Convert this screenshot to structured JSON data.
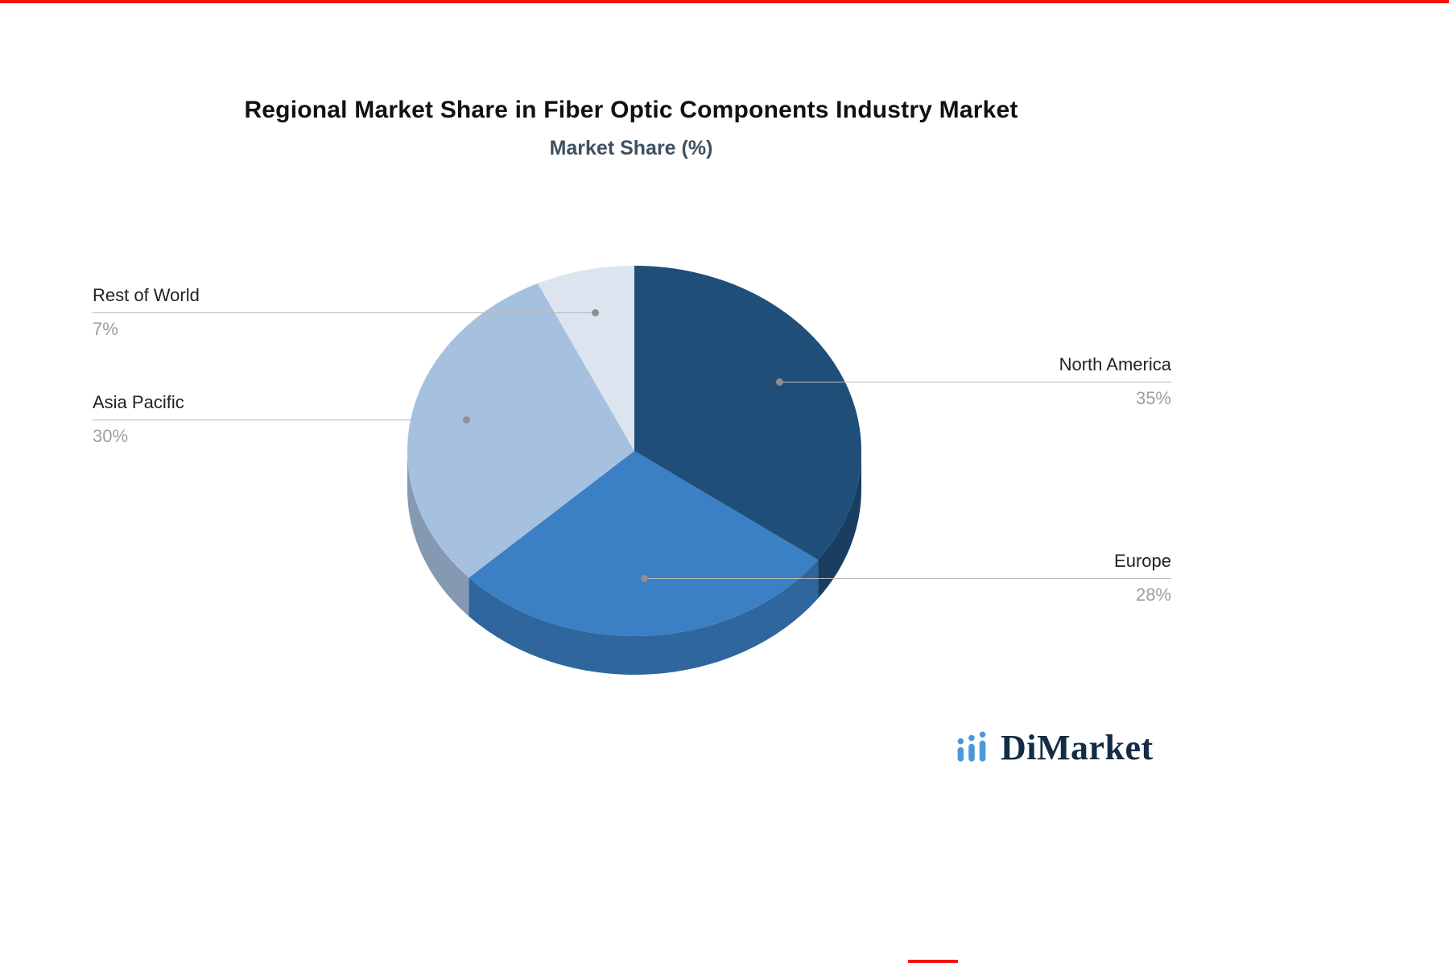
{
  "page": {
    "title": "Regional Market Share in Fiber Optic Components Industry Market",
    "subtitle": "Market Share (%)"
  },
  "colors": {
    "background": "#FFFFFF",
    "accent_red": "#F5120D",
    "title_text": "#111111",
    "subtitle_text": "#3E5060",
    "label_text": "#222222",
    "pct_text": "#9E9E9E",
    "leader_line": "#B9B9B9",
    "leader_dot": "#8F8F8F",
    "brand_icon_blue": "#4A97DD",
    "brand_text_navy": "#142C44"
  },
  "brand": {
    "name": "DiMarket"
  },
  "chart_data": {
    "type": "pie",
    "style": "3d",
    "title": "Regional Market Share in Fiber Optic Components Industry Market",
    "subtitle": "Market Share (%)",
    "unit": "%",
    "direction": "clockwise",
    "start_angle_deg": 0,
    "legend_position": "none",
    "label_style": "leader-lines",
    "slices": [
      {
        "label": "North America",
        "value": 35,
        "pct_label": "35%",
        "color": "#1F4E79",
        "label_side": "right"
      },
      {
        "label": "Europe",
        "value": 28,
        "pct_label": "28%",
        "color": "#3B80C4",
        "label_side": "right"
      },
      {
        "label": "Asia Pacific",
        "value": 30,
        "pct_label": "30%",
        "color": "#A6C1DF",
        "label_side": "left"
      },
      {
        "label": "Rest of World",
        "value": 7,
        "pct_label": "7%",
        "color": "#DCE5EF",
        "label_side": "left"
      }
    ]
  }
}
